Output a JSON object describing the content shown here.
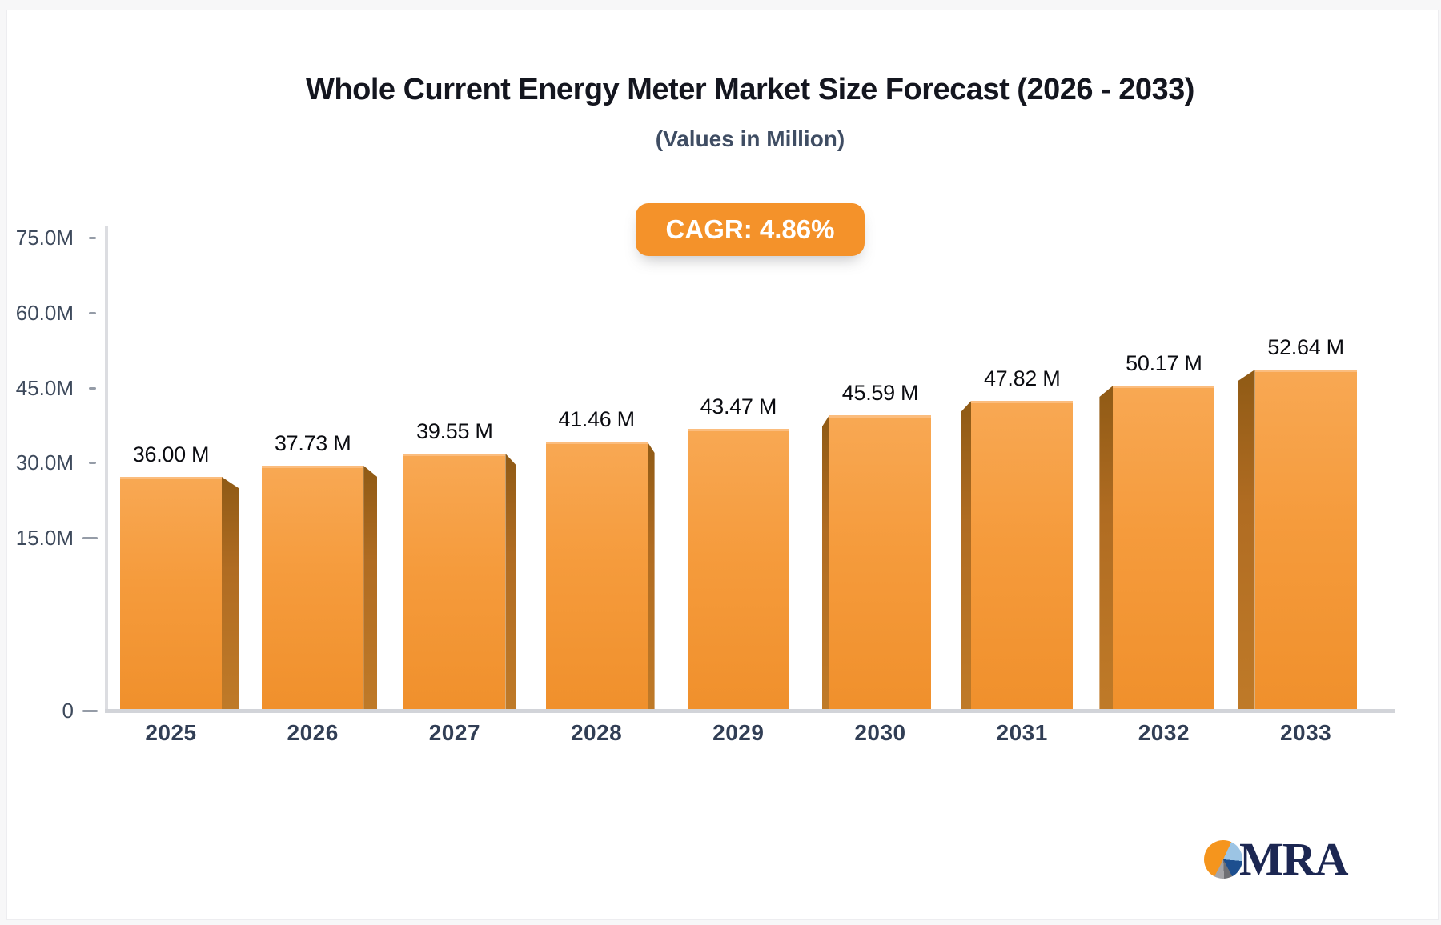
{
  "page": {
    "logo_text": "MRA"
  },
  "chart_data": {
    "type": "bar",
    "title": "Whole Current Energy Meter Market Size Forecast (2026 - 2033)",
    "subtitle": "(Values in Million)",
    "badge_label": "CAGR: 4.86%",
    "cagr_percent": 4.86,
    "unit": "Million",
    "categories": [
      "2025",
      "2026",
      "2027",
      "2028",
      "2029",
      "2030",
      "2031",
      "2032",
      "2033"
    ],
    "values": [
      36.0,
      37.73,
      39.55,
      41.46,
      43.47,
      45.59,
      47.82,
      50.17,
      52.64
    ],
    "value_labels": [
      "36.00 M",
      "37.73 M",
      "39.55 M",
      "41.46 M",
      "43.47 M",
      "45.59 M",
      "47.82 M",
      "50.17 M",
      "52.64 M"
    ],
    "ytick_labels": [
      "75.0M",
      "60.0M",
      "45.0M",
      "30.0M",
      "15.0M",
      "0"
    ],
    "ytick_values": [
      75,
      60,
      45,
      30,
      15,
      0
    ],
    "ylim": [
      0,
      75
    ],
    "xlabel": "",
    "ylabel": "",
    "grid": false,
    "legend_position": "none",
    "bar_color": "#f59b3c",
    "bar_side_color": "#b06c22",
    "badge_color": "#f4922a",
    "style": "3d-perspective-columns"
  }
}
